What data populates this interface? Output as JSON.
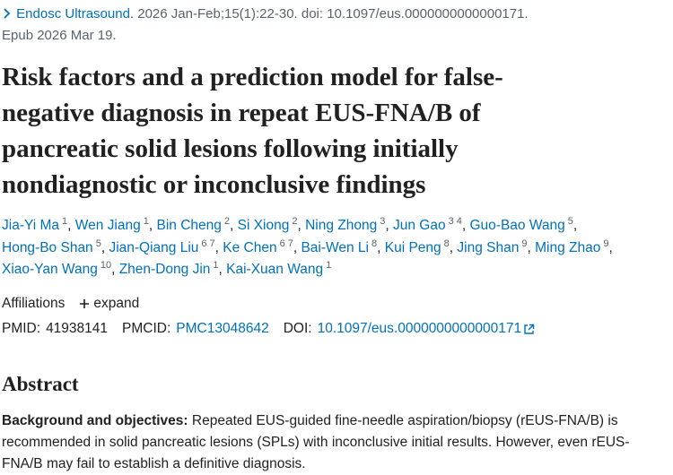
{
  "citation": {
    "journal": "Endosc Ultrasound.",
    "details": "2026 Jan-Feb;15(1):22-30. doi: 10.1097/eus.0000000000000171.",
    "epub": "Epub 2026 Mar 19."
  },
  "title": "Risk factors and a prediction model for false-negative diagnosis in repeat EUS-FNA/B of pancreatic solid lesions following initially nondiagnostic or inconclusive findings",
  "authors": [
    {
      "name": "Jia-Yi Ma",
      "affiliations": [
        "1"
      ]
    },
    {
      "name": "Wen Jiang",
      "affiliations": [
        "1"
      ]
    },
    {
      "name": "Bin Cheng",
      "affiliations": [
        "2"
      ]
    },
    {
      "name": "Si Xiong",
      "affiliations": [
        "2"
      ]
    },
    {
      "name": "Ning Zhong",
      "affiliations": [
        "3"
      ]
    },
    {
      "name": "Jun Gao",
      "affiliations": [
        "3",
        "4"
      ]
    },
    {
      "name": "Guo-Bao Wang",
      "affiliations": [
        "5"
      ]
    },
    {
      "name": "Hong-Bo Shan",
      "affiliations": [
        "5"
      ]
    },
    {
      "name": "Jian-Qiang Liu",
      "affiliations": [
        "6",
        "7"
      ]
    },
    {
      "name": "Ke Chen",
      "affiliations": [
        "6",
        "7"
      ]
    },
    {
      "name": "Bai-Wen Li",
      "affiliations": [
        "8"
      ]
    },
    {
      "name": "Kui Peng",
      "affiliations": [
        "8"
      ]
    },
    {
      "name": "Jing Shan",
      "affiliations": [
        "9"
      ]
    },
    {
      "name": "Ming Zhao",
      "affiliations": [
        "9"
      ]
    },
    {
      "name": "Xiao-Yan Wang",
      "affiliations": [
        "10"
      ]
    },
    {
      "name": "Zhen-Dong Jin",
      "affiliations": [
        "1"
      ]
    },
    {
      "name": "Kai-Xuan Wang",
      "affiliations": [
        "1"
      ]
    }
  ],
  "affiliations": {
    "label": "Affiliations",
    "expand": "expand"
  },
  "ids": {
    "pmid_label": "PMID:",
    "pmid": "41938141",
    "pmcid_label": "PMCID:",
    "pmcid": "PMC13048642",
    "doi_label": "DOI:",
    "doi": "10.1097/eus.0000000000000171"
  },
  "abstract": {
    "heading": "Abstract",
    "lead": "Background and objectives:",
    "text": "Repeated EUS-guided fine-needle aspiration/biopsy (rEUS-FNA/B) is recommended in solid pancreatic lesions (SPLs) with inconclusive initial results. However, even rEUS-FNA/B may fail to establish a definitive diagnosis."
  }
}
